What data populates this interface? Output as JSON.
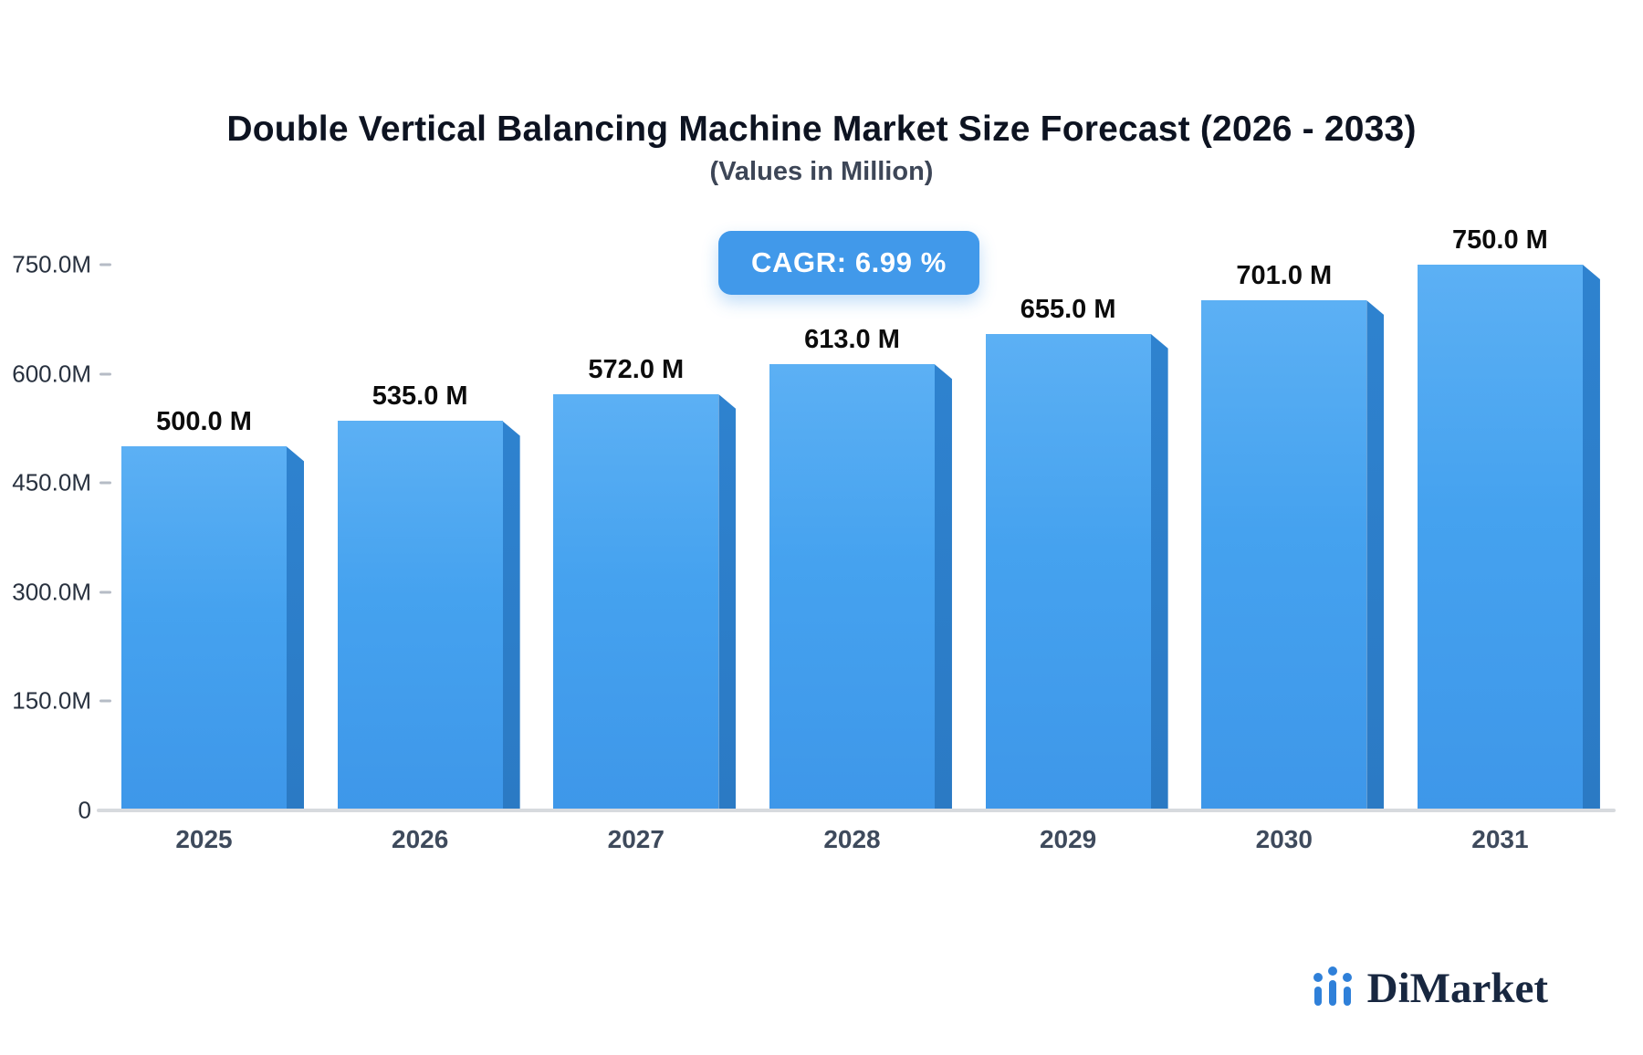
{
  "header": {
    "title": "Double Vertical Balancing Machine Market Size Forecast (2026 - 2033)",
    "subtitle": "(Values in Million)"
  },
  "badge": {
    "label": "CAGR: 6.99 %",
    "color": "#4199ea"
  },
  "chart_data": {
    "type": "bar",
    "title": "Double Vertical Balancing Machine Market Size Forecast (2026 - 2033)",
    "subtitle": "(Values in Million)",
    "categories": [
      "2025",
      "2026",
      "2027",
      "2028",
      "2029",
      "2030",
      "2031"
    ],
    "values": [
      500.0,
      535.0,
      572.0,
      613.0,
      655.0,
      701.0,
      750.0
    ],
    "value_labels": [
      "500.0 M",
      "535.0 M",
      "572.0 M",
      "613.0 M",
      "655.0 M",
      "701.0 M",
      "750.0 M"
    ],
    "unit": "Million",
    "xlabel": "",
    "ylabel": "",
    "ylim": [
      0,
      750
    ],
    "y_ticks": [
      {
        "label": "750.0M",
        "value": 750
      },
      {
        "label": "600.0M",
        "value": 600
      },
      {
        "label": "450.0M",
        "value": 450
      },
      {
        "label": "300.0M",
        "value": 300
      },
      {
        "label": "150.0M",
        "value": 150
      },
      {
        "label": "0",
        "value": 0
      }
    ],
    "annotations": [
      "CAGR: 6.99 %"
    ],
    "grid": false,
    "legend": false,
    "bar_color": "#45a2ef",
    "bar_side_color": "#2b7ac4"
  },
  "footer": {
    "brand": "DiMarket",
    "icon": "bar-chart-logo-icon",
    "brand_color": "#182740",
    "icon_color": "#2f80d9"
  }
}
